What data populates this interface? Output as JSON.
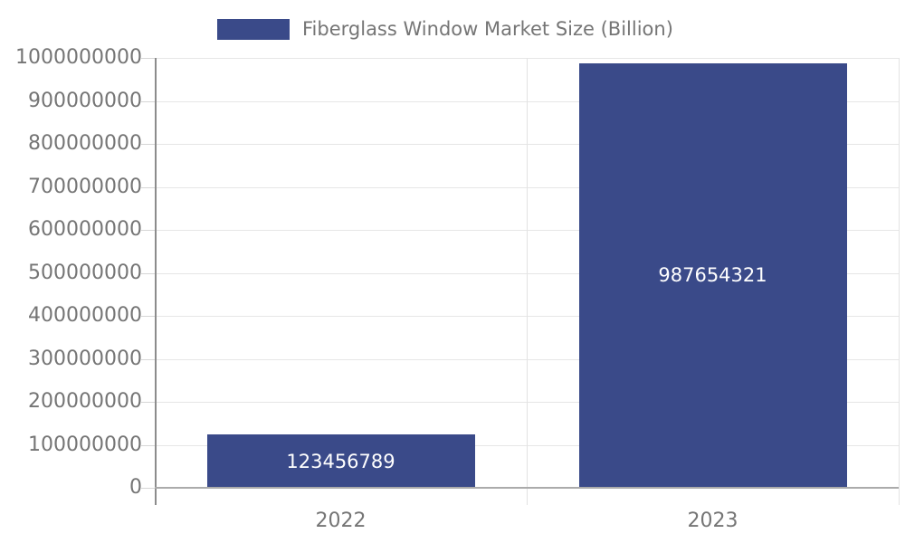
{
  "chart_data": {
    "type": "bar",
    "title": "Fiberglass Window Market Size (Billion)",
    "legend_position": "top",
    "grid": true,
    "categories": [
      "2022",
      "2023"
    ],
    "series": [
      {
        "name": "Fiberglass Window Market Size (Billion)",
        "values": [
          123456789,
          987654321
        ]
      }
    ],
    "bar_labels": [
      "123456789",
      "987654321"
    ],
    "xlabel": "",
    "ylabel": "",
    "ylim": [
      0,
      1000000000
    ],
    "y_ticks": [
      "0",
      "100000000",
      "200000000",
      "300000000",
      "400000000",
      "500000000",
      "600000000",
      "700000000",
      "800000000",
      "900000000",
      "1000000000"
    ],
    "colors": {
      "bar": "#3a4a89",
      "label_text": "#757575",
      "bar_label_text": "#ffffff",
      "gridline": "#e6e6e6",
      "axis_line": "#ababab"
    }
  }
}
